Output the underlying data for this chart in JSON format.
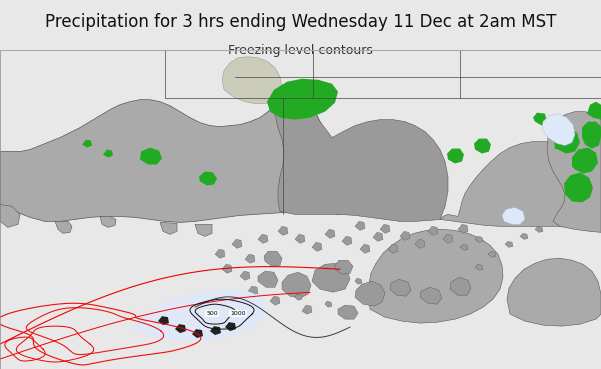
{
  "title": "Precipitation for 3 hrs ending Wednesday 11 Dec at 2am MST",
  "subtitle": "Freezing level contours",
  "title_fontsize": 12,
  "subtitle_fontsize": 9,
  "title_color": "#111111",
  "subtitle_color": "#333333",
  "title_bg_color": "#e8e8e8",
  "ocean_color": "#d0daf0",
  "land_gray_color": "#aaaaaa",
  "land_texture_color": "#b8b8b8",
  "green_color": "#22aa22",
  "red_color": "#ee0000",
  "black_color": "#111111",
  "white_color": "#ffffff",
  "light_blue_color": "#dde8f8",
  "border_line_color": "#555555",
  "fig_width": 6.01,
  "fig_height": 3.69,
  "dpi": 100
}
